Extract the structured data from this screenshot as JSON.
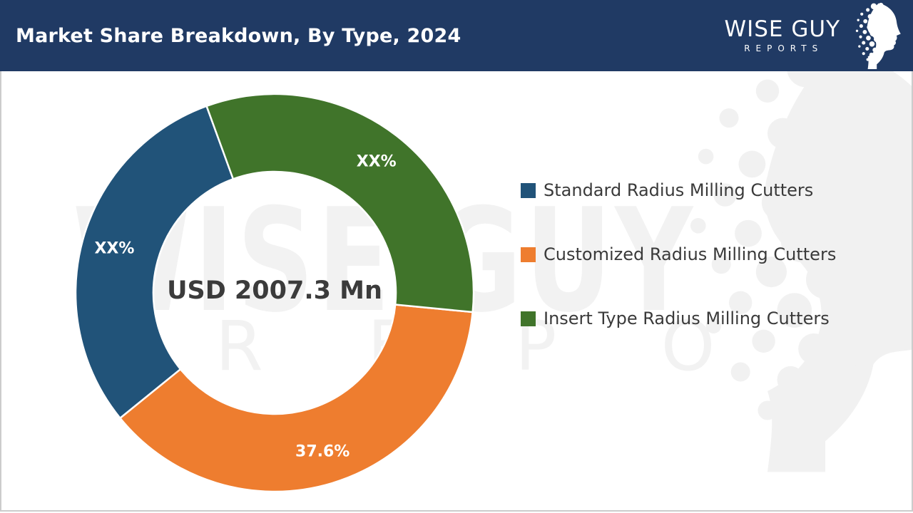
{
  "header": {
    "title": "Market Share Breakdown, By Type, 2024",
    "logo": {
      "line1": "WISE GUY",
      "line2": "REPORTS"
    }
  },
  "watermark": {
    "line1": "WISE GUY",
    "line2": "REPORTS"
  },
  "chart_data": {
    "type": "pie",
    "subtype": "donut",
    "title": "Market Share Breakdown, By Type, 2024",
    "center_label": "USD 2007.3 Mn",
    "start_angle_deg": 110,
    "direction": "counterclockwise",
    "legend_position": "right",
    "segments": [
      {
        "label": "Standard Radius Milling Cutters",
        "value_pct": 30.3,
        "display": "XX%",
        "color": "#215379"
      },
      {
        "label": "Customized Radius Milling Cutters",
        "value_pct": 37.6,
        "display": "37.6%",
        "color": "#ee7d2f"
      },
      {
        "label": "Insert Type Radius Milling Cutters",
        "value_pct": 32.1,
        "display": "XX%",
        "color": "#40742a"
      }
    ]
  },
  "colors": {
    "header_bg": "#203a64",
    "center_text": "#3b3b3b",
    "legend_text": "#3a3a3a",
    "watermark": "#f2f2f2",
    "frame_border": "#cccccc"
  }
}
